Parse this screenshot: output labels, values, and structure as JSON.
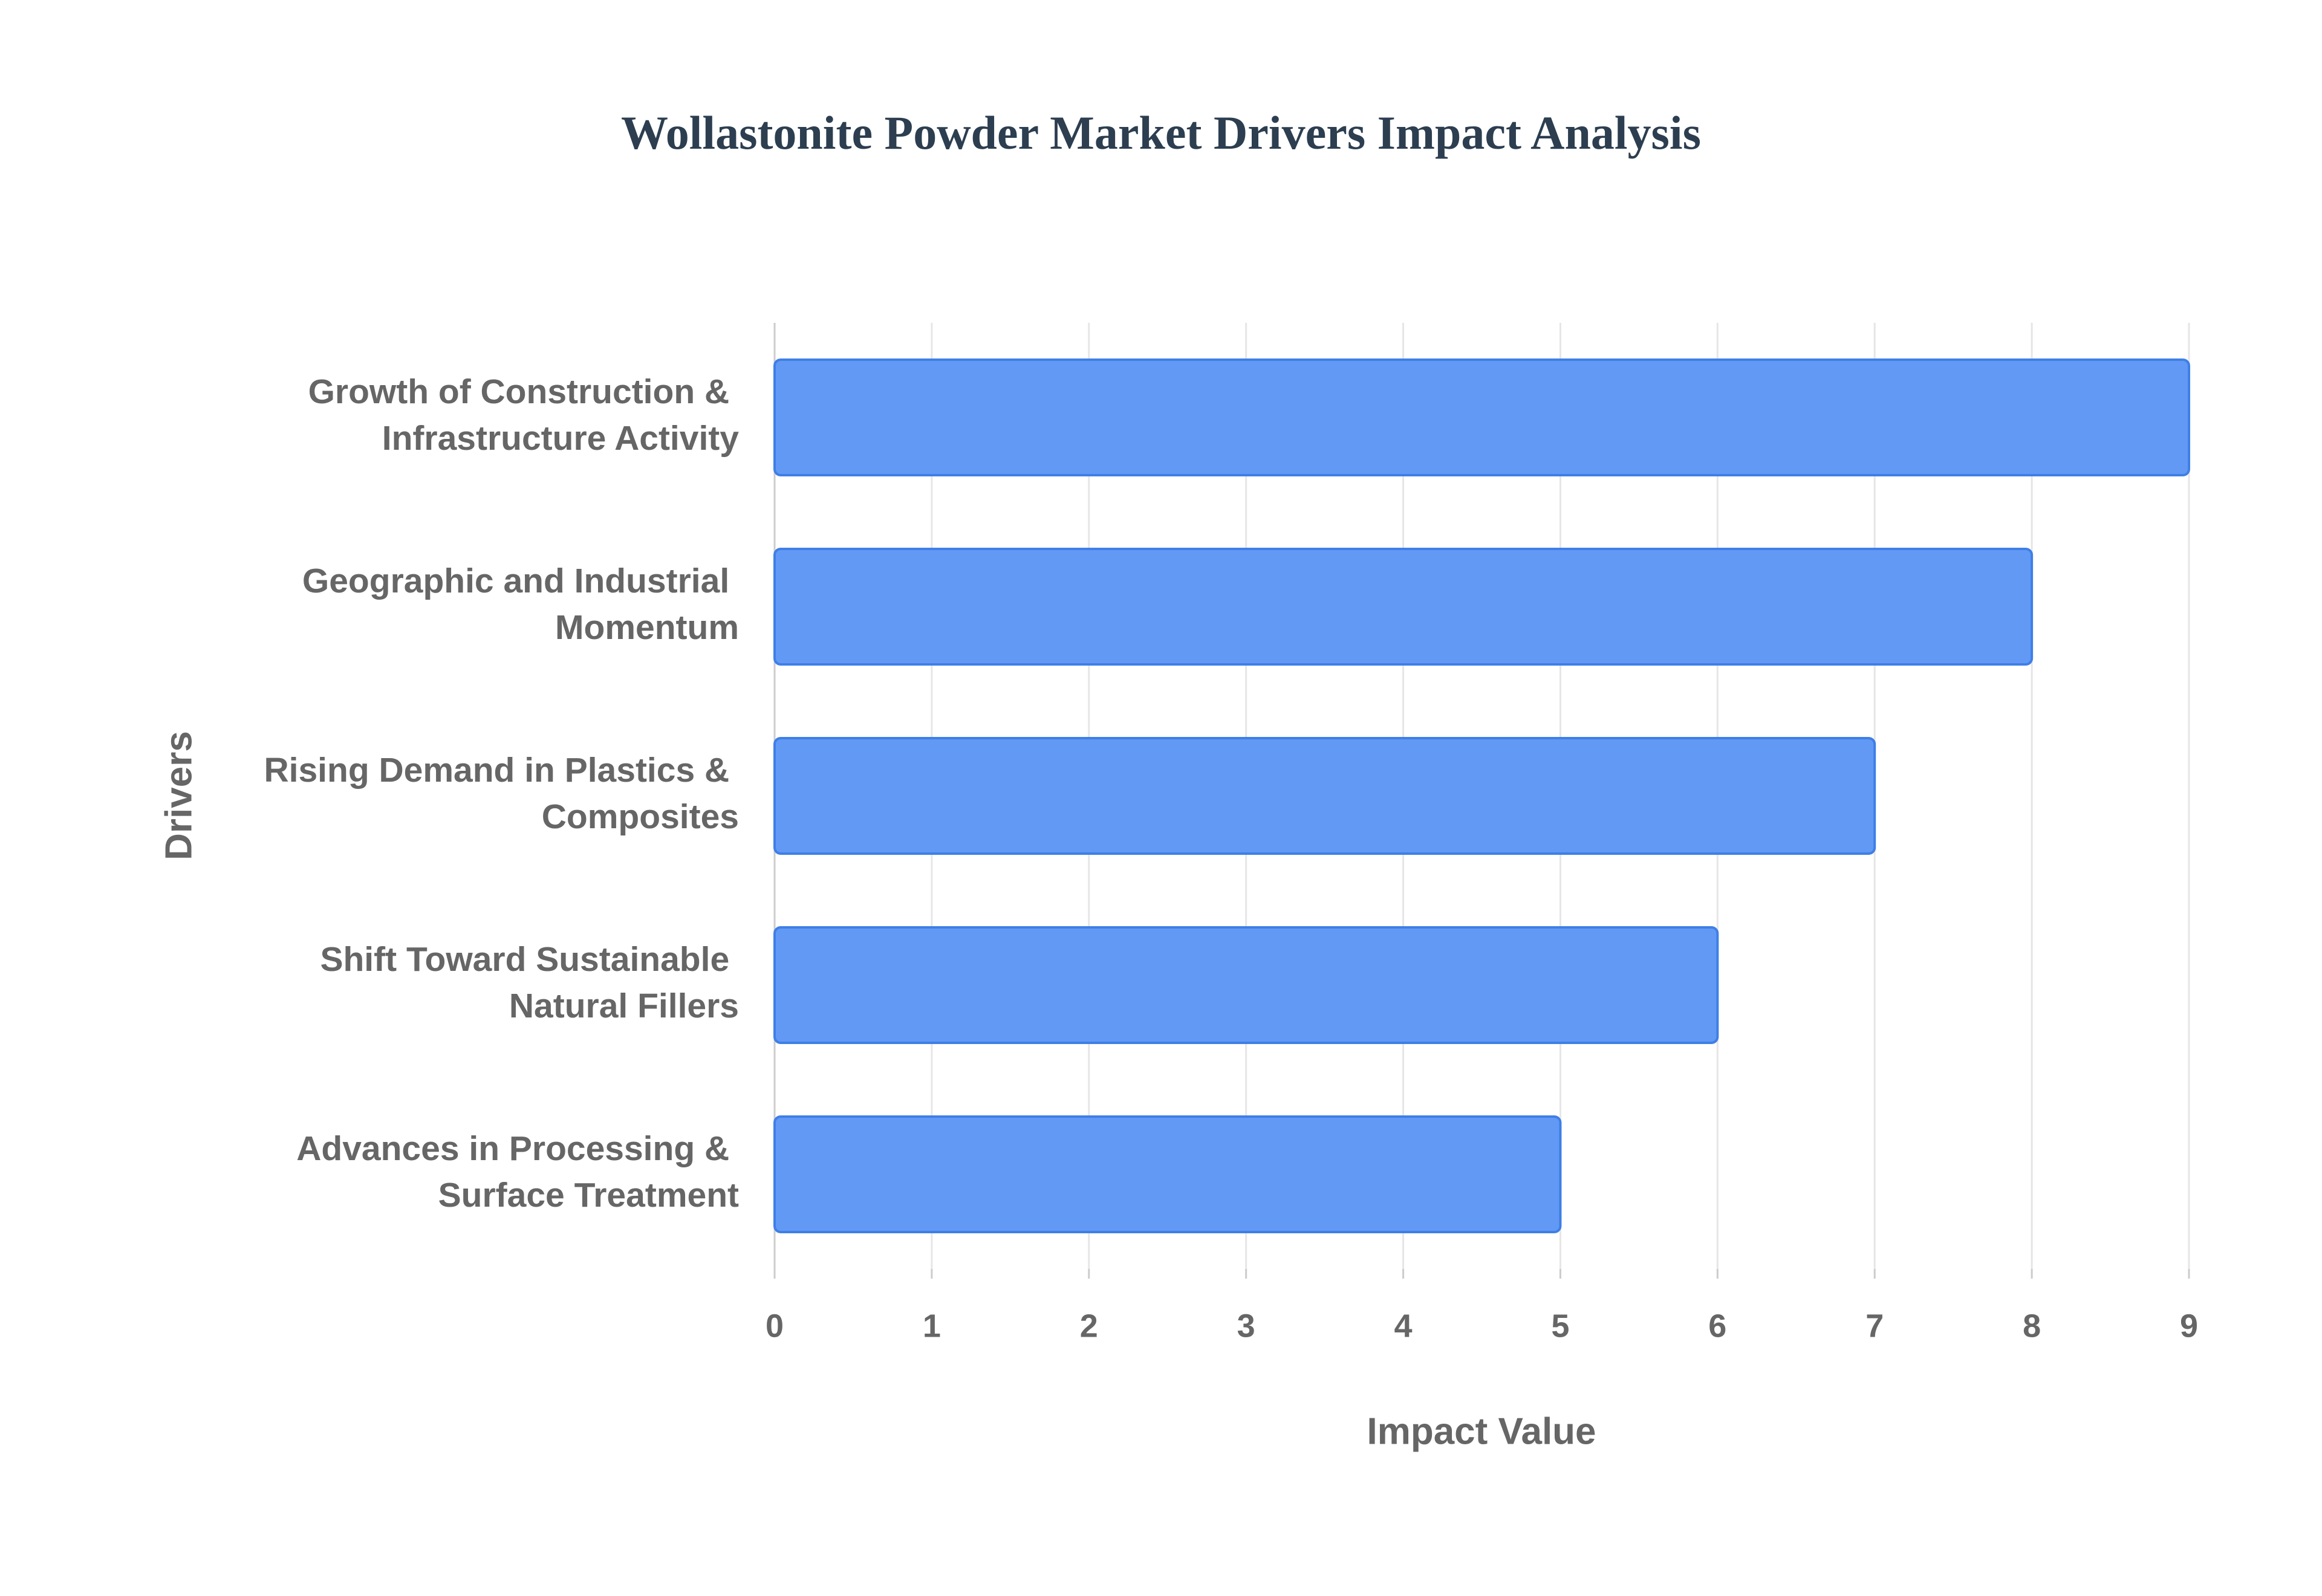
{
  "chart_data": {
    "type": "hbar",
    "title": "Wollastonite Powder Market Drivers Impact Analysis",
    "categories": [
      "Growth of Construction & Infrastructure Activity",
      "Geographic and Industrial Momentum",
      "Rising Demand in Plastics & Composites",
      "Shift Toward Sustainable Natural Fillers",
      "Advances in Processing & Surface Treatment"
    ],
    "values": [
      9,
      8,
      7,
      6,
      5
    ],
    "color": "#6299f5",
    "xlabel": "Impact Value",
    "ylabel": "Drivers",
    "xlim": [
      0,
      9
    ],
    "xticks": [
      0,
      1,
      2,
      3,
      4,
      5,
      6,
      7,
      8,
      9
    ],
    "grid": true
  }
}
